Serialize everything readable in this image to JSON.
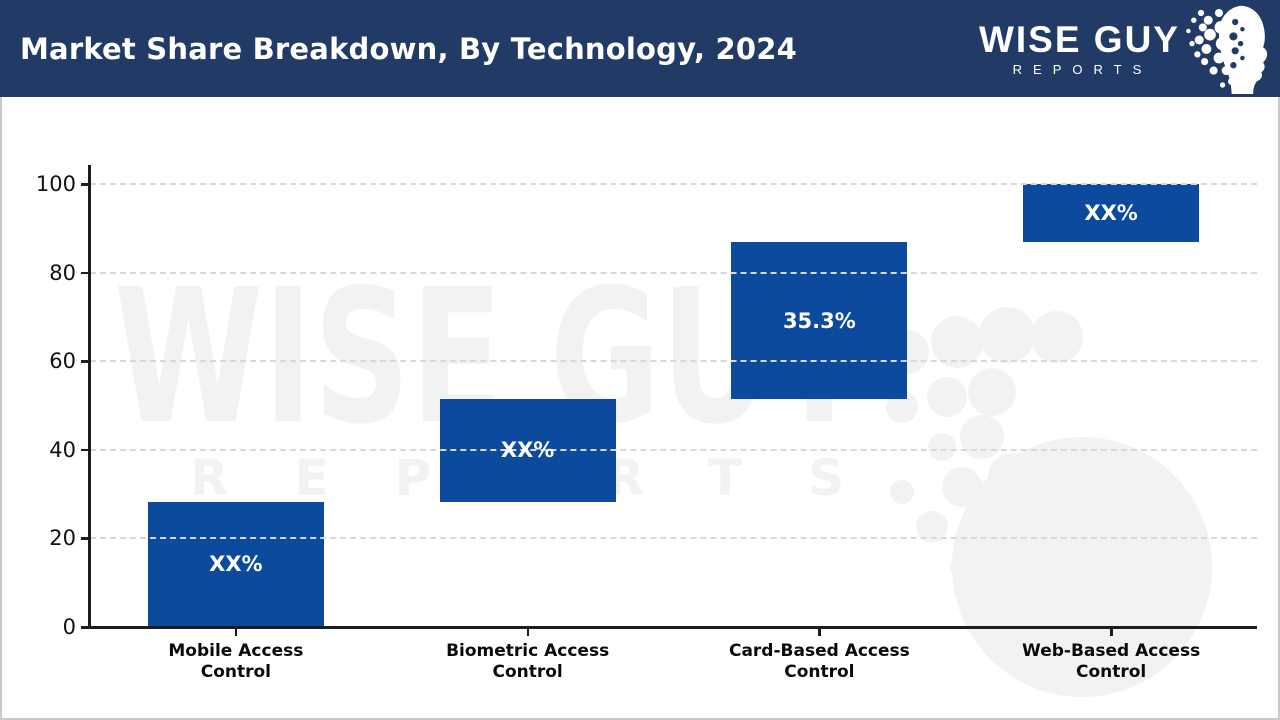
{
  "header": {
    "title": "Market Share Breakdown, By Technology, 2024",
    "logo": {
      "name": "WISE GUY",
      "sub": "REPORTS"
    }
  },
  "watermark": {
    "name": "WISE GUY",
    "sub": "REPORTS"
  },
  "colors": {
    "header_bg": "#213a66",
    "bar": "#0b4a9d",
    "grid": "#d8d8d8",
    "axis": "#1c1c1c",
    "watermark": "#f2f2f3",
    "border": "#c9c9c9",
    "bar_label": "#ffffff"
  },
  "chart_data": {
    "type": "bar",
    "subtype": "floating-segment-waterfall",
    "title": "Market Share Breakdown, By Technology, 2024",
    "categories": [
      "Mobile Access Control",
      "Biometric Access Control",
      "Card-Based Access Control",
      "Web-Based Access Control"
    ],
    "segments": [
      {
        "category": "Mobile Access Control",
        "start": 0,
        "end": 28.3,
        "label": "XX%"
      },
      {
        "category": "Biometric Access Control",
        "start": 28.3,
        "end": 51.5,
        "label": "XX%"
      },
      {
        "category": "Card-Based Access Control",
        "start": 51.5,
        "end": 86.8,
        "label": "35.3%"
      },
      {
        "category": "Web-Based Access Control",
        "start": 86.8,
        "end": 100,
        "label": "XX%"
      }
    ],
    "values_by_segment": [
      28.3,
      23.2,
      35.3,
      13.2
    ],
    "xlabel": "",
    "ylabel": "",
    "yticks": [
      0,
      20,
      40,
      60,
      80,
      100
    ],
    "ylim": [
      0,
      104.5
    ],
    "grid": "horizontal-dashed-over-bars",
    "legend": "none"
  }
}
